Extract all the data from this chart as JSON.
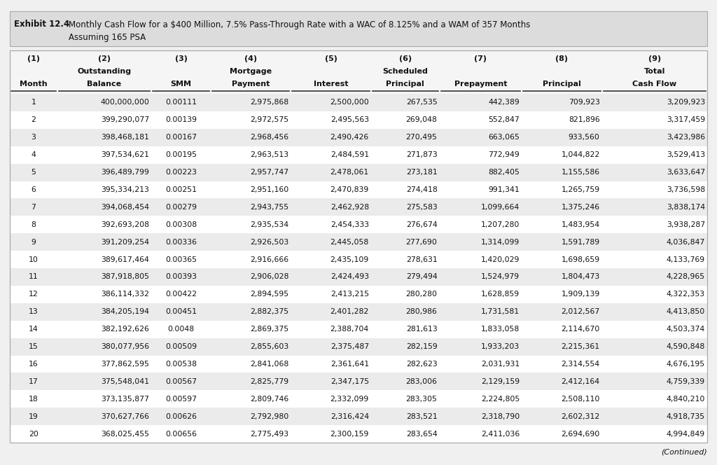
{
  "title_bold": "Exhibit 12.4",
  "title_rest_line1": "  Monthly Cash Flow for a $400 Million, 7.5% Pass-Through Rate with a WAC of 8.125% and a WAM of 357 Months",
  "title_line2": "               Assuming 165 PSA",
  "col_num_labels": [
    "(1)",
    "(2)",
    "(3)",
    "(4)",
    "(5)",
    "(6)",
    "(7)",
    "(8)",
    "(9)"
  ],
  "col_sub1": [
    "",
    "Outstanding",
    "",
    "Mortgage",
    "",
    "Scheduled",
    "",
    "",
    "Total"
  ],
  "col_sub2": [
    "Month",
    "Balance",
    "SMM",
    "Payment",
    "Interest",
    "Principal",
    "Prepayment",
    "Principal",
    "Cash Flow"
  ],
  "rows": [
    [
      "1",
      "400,000,000",
      "0.00111",
      "2,975,868",
      "2,500,000",
      "267,535",
      "442,389",
      "709,923",
      "3,209,923"
    ],
    [
      "2",
      "399,290,077",
      "0.00139",
      "2,972,575",
      "2,495,563",
      "269,048",
      "552,847",
      "821,896",
      "3,317,459"
    ],
    [
      "3",
      "398,468,181",
      "0.00167",
      "2,968,456",
      "2,490,426",
      "270,495",
      "663,065",
      "933,560",
      "3,423,986"
    ],
    [
      "4",
      "397,534,621",
      "0.00195",
      "2,963,513",
      "2,484,591",
      "271,873",
      "772,949",
      "1,044,822",
      "3,529,413"
    ],
    [
      "5",
      "396,489,799",
      "0.00223",
      "2,957,747",
      "2,478,061",
      "273,181",
      "882,405",
      "1,155,586",
      "3,633,647"
    ],
    [
      "6",
      "395,334,213",
      "0.00251",
      "2,951,160",
      "2,470,839",
      "274,418",
      "991,341",
      "1,265,759",
      "3,736,598"
    ],
    [
      "7",
      "394,068,454",
      "0.00279",
      "2,943,755",
      "2,462,928",
      "275,583",
      "1,099,664",
      "1,375,246",
      "3,838,174"
    ],
    [
      "8",
      "392,693,208",
      "0.00308",
      "2,935,534",
      "2,454,333",
      "276,674",
      "1,207,280",
      "1,483,954",
      "3,938,287"
    ],
    [
      "9",
      "391,209,254",
      "0.00336",
      "2,926,503",
      "2,445,058",
      "277,690",
      "1,314,099",
      "1,591,789",
      "4,036,847"
    ],
    [
      "10",
      "389,617,464",
      "0.00365",
      "2,916,666",
      "2,435,109",
      "278,631",
      "1,420,029",
      "1,698,659",
      "4,133,769"
    ],
    [
      "11",
      "387,918,805",
      "0.00393",
      "2,906,028",
      "2,424,493",
      "279,494",
      "1,524,979",
      "1,804,473",
      "4,228,965"
    ],
    [
      "12",
      "386,114,332",
      "0.00422",
      "2,894,595",
      "2,413,215",
      "280,280",
      "1,628,859",
      "1,909,139",
      "4,322,353"
    ],
    [
      "13",
      "384,205,194",
      "0.00451",
      "2,882,375",
      "2,401,282",
      "280,986",
      "1,731,581",
      "2,012,567",
      "4,413,850"
    ],
    [
      "14",
      "382,192,626",
      "0.0048",
      "2,869,375",
      "2,388,704",
      "281,613",
      "1,833,058",
      "2,114,670",
      "4,503,374"
    ],
    [
      "15",
      "380,077,956",
      "0.00509",
      "2,855,603",
      "2,375,487",
      "282,159",
      "1,933,203",
      "2,215,361",
      "4,590,848"
    ],
    [
      "16",
      "377,862,595",
      "0.00538",
      "2,841,068",
      "2,361,641",
      "282,623",
      "2,031,931",
      "2,314,554",
      "4,676,195"
    ],
    [
      "17",
      "375,548,041",
      "0.00567",
      "2,825,779",
      "2,347,175",
      "283,006",
      "2,129,159",
      "2,412,164",
      "4,759,339"
    ],
    [
      "18",
      "373,135,877",
      "0.00597",
      "2,809,746",
      "2,332,099",
      "283,305",
      "2,224,805",
      "2,508,110",
      "4,840,210"
    ],
    [
      "19",
      "370,627,766",
      "0.00626",
      "2,792,980",
      "2,316,424",
      "283,521",
      "2,318,790",
      "2,602,312",
      "4,918,735"
    ],
    [
      "20",
      "368,025,455",
      "0.00656",
      "2,775,493",
      "2,300,159",
      "283,654",
      "2,411,036",
      "2,694,690",
      "4,994,849"
    ]
  ],
  "row_alt_color": "#ebebeb",
  "row_white_color": "#ffffff",
  "title_bg": "#dcdcdc",
  "header_bg": "#f5f5f5",
  "border_color": "#999999",
  "text_color": "#111111",
  "continued_text": "(Continued)"
}
